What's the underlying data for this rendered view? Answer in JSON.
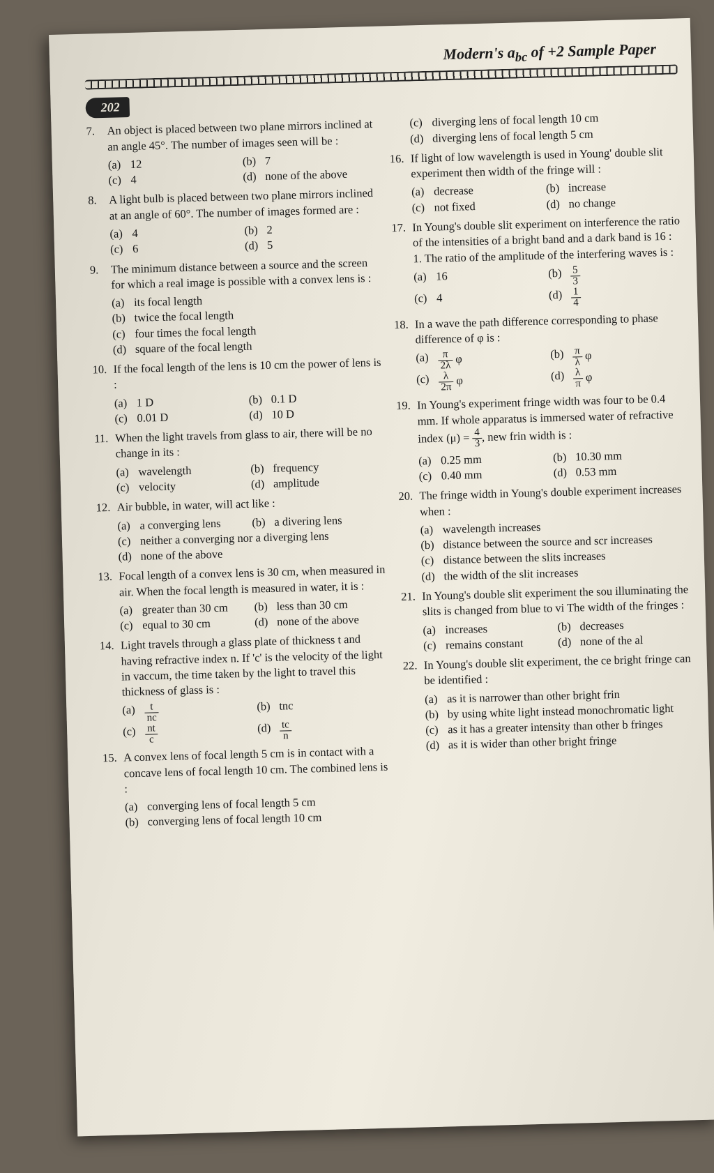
{
  "header": {
    "title_html": "Modern's <b>abc</b> of +2 Sample Paper",
    "page_number": "202"
  },
  "left": [
    {
      "n": "7.",
      "t": "An object is placed between two plane mirrors inclined at an angle 45°. The number of images seen will be :",
      "o": [
        [
          "(a)",
          "12"
        ],
        [
          "(b)",
          "7"
        ],
        [
          "(c)",
          "4"
        ],
        [
          "(d)",
          "none of the above"
        ]
      ]
    },
    {
      "n": "8.",
      "t": "A light bulb is placed between two plane mirrors inclined at an angle of 60°. The number of images formed are :",
      "o": [
        [
          "(a)",
          "4"
        ],
        [
          "(b)",
          "2"
        ],
        [
          "(c)",
          "6"
        ],
        [
          "(d)",
          "5"
        ]
      ]
    },
    {
      "n": "9.",
      "t": "The minimum distance between a source and the screen for which a real image is possible with a convex lens is :",
      "o": [
        [
          "(a)",
          "its focal length",
          "full"
        ],
        [
          "(b)",
          "twice the focal length",
          "full"
        ],
        [
          "(c)",
          "four times the focal length",
          "full"
        ],
        [
          "(d)",
          "square of the focal length",
          "full"
        ]
      ]
    },
    {
      "n": "10.",
      "t": "If the focal length of the lens is 10 cm the power of lens is :",
      "o": [
        [
          "(a)",
          "1 D"
        ],
        [
          "(b)",
          "0.1 D"
        ],
        [
          "(c)",
          "0.01 D"
        ],
        [
          "(d)",
          "10 D"
        ]
      ]
    },
    {
      "n": "11.",
      "t": "When the light travels from glass to air, there will be no change in its :",
      "o": [
        [
          "(a)",
          "wavelength"
        ],
        [
          "(b)",
          "frequency"
        ],
        [
          "(c)",
          "velocity"
        ],
        [
          "(d)",
          "amplitude"
        ]
      ]
    },
    {
      "n": "12.",
      "t": "Air bubble, in water, will act like :",
      "o": [
        [
          "(a)",
          "a converging lens"
        ],
        [
          "(b)",
          "a divering lens"
        ],
        [
          "(c)",
          "neither a converging nor a diverging lens",
          "full"
        ],
        [
          "(d)",
          "none of the above",
          "full"
        ]
      ]
    },
    {
      "n": "13.",
      "t": "Focal length of a convex lens is 30 cm, when measured in air. When the focal length is measured in water, it is :",
      "o": [
        [
          "(a)",
          "greater than 30 cm"
        ],
        [
          "(b)",
          "less than 30 cm"
        ],
        [
          "(c)",
          "equal to 30 cm"
        ],
        [
          "(d)",
          "none of the above"
        ]
      ]
    },
    {
      "n": "14.",
      "t": "Light travels through a glass plate of thickness t and having refractive index n. If 'c' is the velocity of the light in vaccum, the time taken by the light to travel this thickness of glass is :",
      "o": [
        [
          "(a)",
          "<span class='frac'><span class='n'>t</span><span class='d'>nc</span></span>"
        ],
        [
          "(b)",
          "tnc"
        ],
        [
          "(c)",
          "<span class='frac'><span class='n'>nt</span><span class='d'>c</span></span>"
        ],
        [
          "(d)",
          "<span class='frac'><span class='n'>tc</span><span class='d'>n</span></span>"
        ]
      ]
    },
    {
      "n": "15.",
      "t": "A convex lens of focal length 5 cm is in contact with a concave lens of focal length 10 cm. The combined lens is :",
      "o": [
        [
          "(a)",
          "converging lens of focal length 5 cm",
          "full"
        ],
        [
          "(b)",
          "converging lens of focal length 10 cm",
          "full"
        ]
      ]
    }
  ],
  "right_pre": [
    [
      "(c)",
      "diverging lens of focal length 10 cm"
    ],
    [
      "(d)",
      "diverging lens of focal length 5 cm"
    ]
  ],
  "right": [
    {
      "n": "16.",
      "t": "If light of low wavelength is used in Young' double slit experiment then width of the fringe will :",
      "o": [
        [
          "(a)",
          "decrease"
        ],
        [
          "(b)",
          "increase"
        ],
        [
          "(c)",
          "not fixed"
        ],
        [
          "(d)",
          "no change"
        ]
      ]
    },
    {
      "n": "17.",
      "t": "In Young's double slit experiment on interference the ratio of the intensities of a bright band and a dark band is 16 : 1. The ratio of the amplitude of the interfering waves is :",
      "o": [
        [
          "(a)",
          "16"
        ],
        [
          "(b)",
          "<span class='frac'><span class='n'>5</span><span class='d'>3</span></span>"
        ],
        [
          "(c)",
          "4"
        ],
        [
          "(d)",
          "<span class='frac'><span class='n'>1</span><span class='d'>4</span></span>"
        ]
      ]
    },
    {
      "n": "18.",
      "t": "In a wave the path difference corresponding to phase difference of φ is :",
      "o": [
        [
          "(a)",
          "<span class='frac'><span class='n'>π</span><span class='d'>2λ</span></span> φ"
        ],
        [
          "(b)",
          "<span class='frac'><span class='n'>π</span><span class='d'>λ</span></span> φ"
        ],
        [
          "(c)",
          "<span class='frac'><span class='n'>λ</span><span class='d'>2π</span></span> φ"
        ],
        [
          "(d)",
          "<span class='frac'><span class='n'>λ</span><span class='d'>π</span></span> φ"
        ]
      ]
    },
    {
      "n": "19.",
      "t": "In Young's experiment fringe width was four to be 0.4 mm. If whole apparatus is immersed water of refractive index (μ) = <span class='frac'><span class='n'>4</span><span class='d'>3</span></span>, new frin width is :",
      "o": [
        [
          "(a)",
          "0.25 mm"
        ],
        [
          "(b)",
          "10.30 mm"
        ],
        [
          "(c)",
          "0.40 mm"
        ],
        [
          "(d)",
          "0.53 mm"
        ]
      ]
    },
    {
      "n": "20.",
      "t": "The fringe width in Young's double experiment increases when :",
      "o": [
        [
          "(a)",
          "wavelength increases",
          "full"
        ],
        [
          "(b)",
          "distance between the source and scr increases",
          "full"
        ],
        [
          "(c)",
          "distance between the slits increases",
          "full"
        ],
        [
          "(d)",
          "the width of the slit increases",
          "full"
        ]
      ]
    },
    {
      "n": "21.",
      "t": "In Young's double slit experiment the sou illuminating the slits is changed from blue to vi The width of the fringes :",
      "o": [
        [
          "(a)",
          "increases"
        ],
        [
          "(b)",
          "decreases"
        ],
        [
          "(c)",
          "remains constant"
        ],
        [
          "(d)",
          "none of the al"
        ]
      ]
    },
    {
      "n": "22.",
      "t": "In Young's double slit experiment, the ce bright fringe can be identified :",
      "o": [
        [
          "(a)",
          "as it is narrower than other bright frin",
          "full"
        ],
        [
          "(b)",
          "by using white light instead monochromatic light",
          "full"
        ],
        [
          "(c)",
          "as it has a greater intensity than other b fringes",
          "full"
        ],
        [
          "(d)",
          "as it is wider than other bright fringe",
          "full"
        ]
      ]
    }
  ]
}
